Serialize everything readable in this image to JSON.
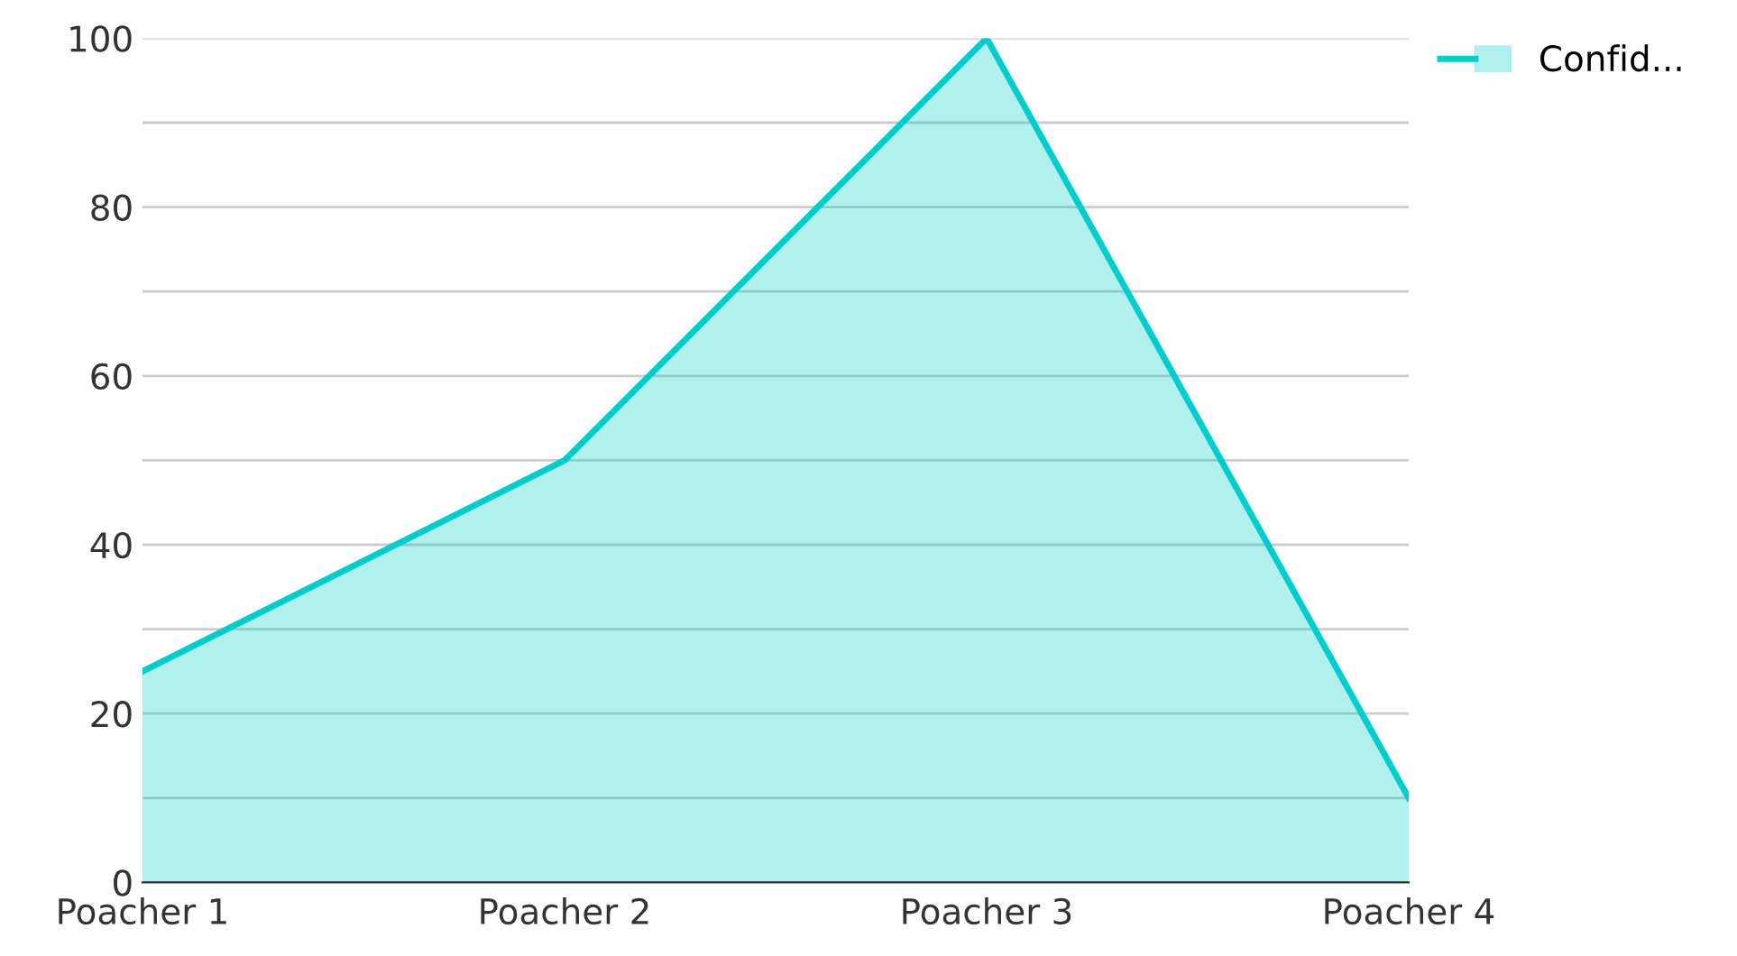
{
  "chart_data": {
    "type": "area",
    "categories": [
      "Poacher 1",
      "Poacher 2",
      "Poacher 3",
      "Poacher 4"
    ],
    "series": [
      {
        "name": "Confid...",
        "color": "#00cccc",
        "values": [
          25,
          50,
          100,
          10
        ]
      }
    ],
    "ylim": [
      0,
      100
    ],
    "yticks": [
      0,
      {
        "value": 10,
        "label": null
      },
      20,
      {
        "value": 30,
        "label": null
      },
      40,
      {
        "value": 50,
        "label": null
      },
      60,
      {
        "value": 70,
        "label": null
      },
      80,
      {
        "value": 90,
        "label": null
      },
      100
    ],
    "grid": "y",
    "legend": "top right"
  }
}
